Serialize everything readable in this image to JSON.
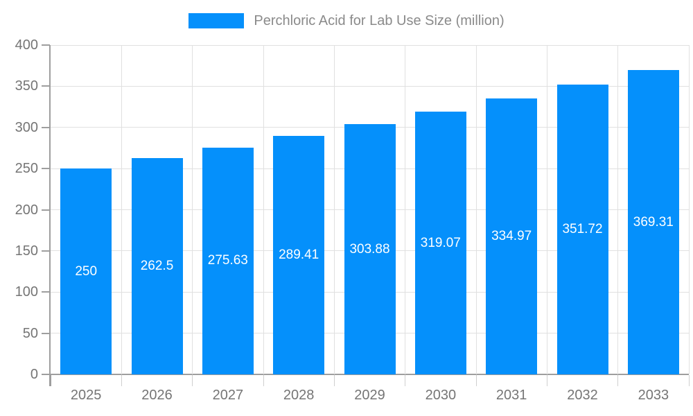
{
  "legend": {
    "label": "Perchloric Acid for Lab Use Size (million)"
  },
  "chart_data": {
    "type": "bar",
    "title": "Perchloric Acid for Lab Use Size (million)",
    "categories": [
      "2025",
      "2026",
      "2027",
      "2028",
      "2029",
      "2030",
      "2031",
      "2032",
      "2033"
    ],
    "values": [
      250,
      262.5,
      275.63,
      289.41,
      303.88,
      319.07,
      334.97,
      351.72,
      369.31
    ],
    "value_labels": [
      "250",
      "262.5",
      "275.63",
      "289.41",
      "303.88",
      "319.07",
      "334.97",
      "351.72",
      "369.31"
    ],
    "xlabel": "",
    "ylabel": "",
    "ylim": [
      0,
      400
    ],
    "y_tick_step": 50,
    "y_tick_labels": [
      "0",
      "50",
      "100",
      "150",
      "200",
      "250",
      "300",
      "350",
      "400"
    ],
    "grid": "both",
    "legend_position": "top-center",
    "value_label_position": "inside-center",
    "colors": {
      "bar": "#0590fb",
      "value_label": "#ffffff",
      "axis_text": "#757575",
      "legend_text": "#8a8a8a",
      "grid_line": "#e0e0e0",
      "axis_line": "#9e9e9e",
      "tick_line": "#cfcfcf",
      "background": "#ffffff"
    }
  }
}
